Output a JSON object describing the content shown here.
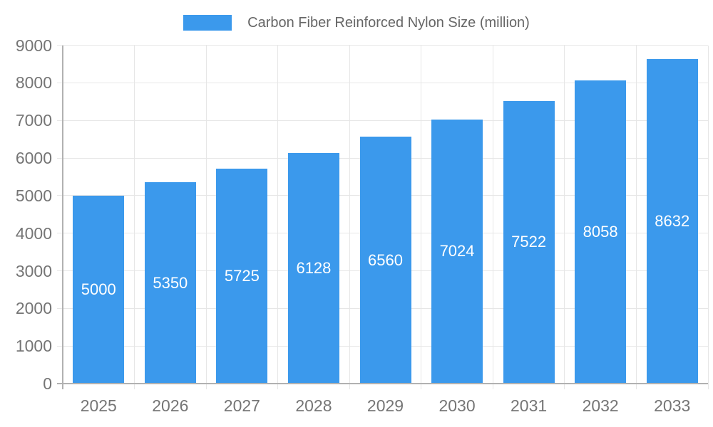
{
  "page": {
    "background": "#ffffff"
  },
  "legend": {
    "label": "Carbon Fiber Reinforced Nylon Size (million)"
  },
  "chart_data": {
    "type": "bar",
    "title": "Carbon Fiber Reinforced Nylon Size (million)",
    "categories": [
      "2025",
      "2026",
      "2027",
      "2028",
      "2029",
      "2030",
      "2031",
      "2032",
      "2033"
    ],
    "values": [
      5000,
      5350,
      5725,
      6128,
      6560,
      7024,
      7522,
      8058,
      8632
    ],
    "series": [
      {
        "name": "Carbon Fiber Reinforced Nylon Size (million)",
        "values": [
          5000,
          5350,
          5725,
          6128,
          6560,
          7024,
          7522,
          8058,
          8632
        ]
      }
    ],
    "xlabel": "",
    "ylabel": "",
    "ylim": [
      0,
      9000
    ],
    "ytick_step": 1000,
    "grid": true,
    "legend_position": "top",
    "bar_label_position": "inside-center",
    "colors": {
      "bar": "#3b99ec",
      "bar_label": "#ffffff",
      "axis_text": "#757575",
      "grid_line": "#e6e6e6",
      "axis_line": "#b1b1b1",
      "legend_text": "#666666"
    }
  }
}
